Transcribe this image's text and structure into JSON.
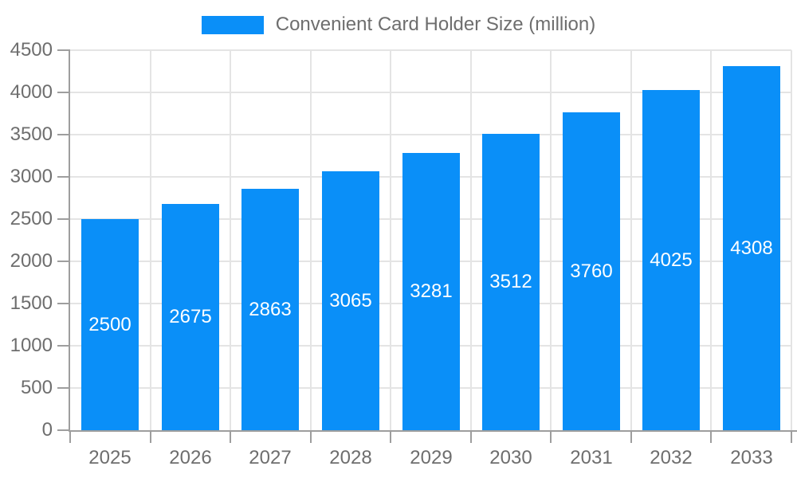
{
  "legend": {
    "label": "Convenient Card Holder Size (million)"
  },
  "chart_data": {
    "type": "bar",
    "title": "Convenient Card Holder Size (million)",
    "categories": [
      "2025",
      "2026",
      "2027",
      "2028",
      "2029",
      "2030",
      "2031",
      "2032",
      "2033"
    ],
    "values": [
      2500,
      2675,
      2863,
      3065,
      3281,
      3512,
      3760,
      4025,
      4308
    ],
    "xlabel": "",
    "ylabel": "",
    "ylim": [
      0,
      4500
    ],
    "ytick_step": 500,
    "grid": true,
    "legend_position": "top-center",
    "value_labels": "inside-center"
  },
  "colors": {
    "bar": "#0a8ff8",
    "value_label": "#ffffff",
    "axis_label": "#6e6e6e",
    "axis_line": "#9e9e9e",
    "grid_line": "#e4e4e4",
    "background": "#ffffff"
  }
}
